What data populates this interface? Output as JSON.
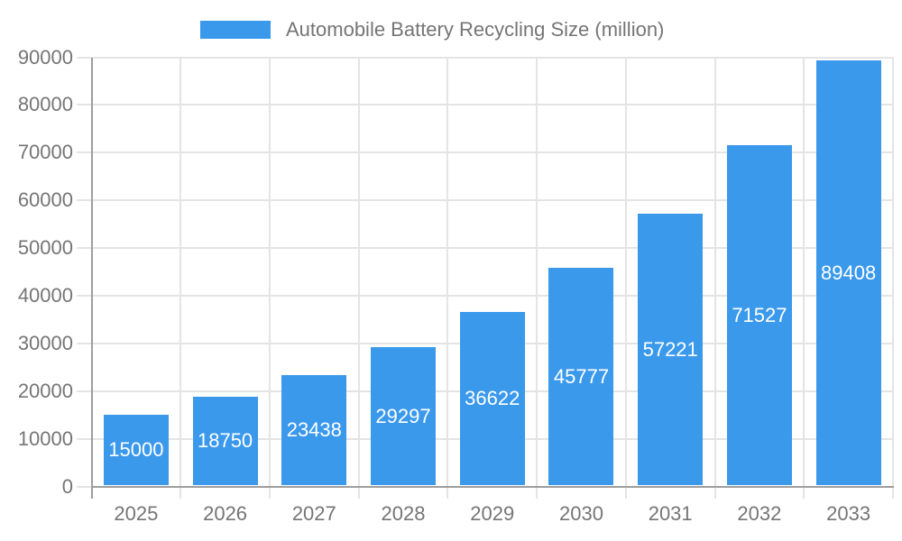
{
  "chart_data": {
    "type": "bar",
    "title": "Automobile Battery Recycling Size (million)",
    "legend_position": "top",
    "categories": [
      "2025",
      "2026",
      "2027",
      "2028",
      "2029",
      "2030",
      "2031",
      "2032",
      "2033"
    ],
    "values": [
      15000,
      18750,
      23438,
      29297,
      36622,
      45777,
      57221,
      71527,
      89408
    ],
    "xlabel": "",
    "ylabel": "",
    "ylim": [
      0,
      90000
    ],
    "ytick_step": 10000,
    "yticks": [
      0,
      10000,
      20000,
      30000,
      40000,
      50000,
      60000,
      70000,
      80000,
      90000
    ],
    "grid": true,
    "value_labels": "inside-center"
  },
  "colors": {
    "bar": "#3B99EC",
    "grid": "#E4E4E4",
    "axis": "#9E9E9E",
    "tick_text": "#757575",
    "legend_text": "#757575",
    "value_label": "#FFFFFF",
    "background": "#FFFFFF"
  }
}
